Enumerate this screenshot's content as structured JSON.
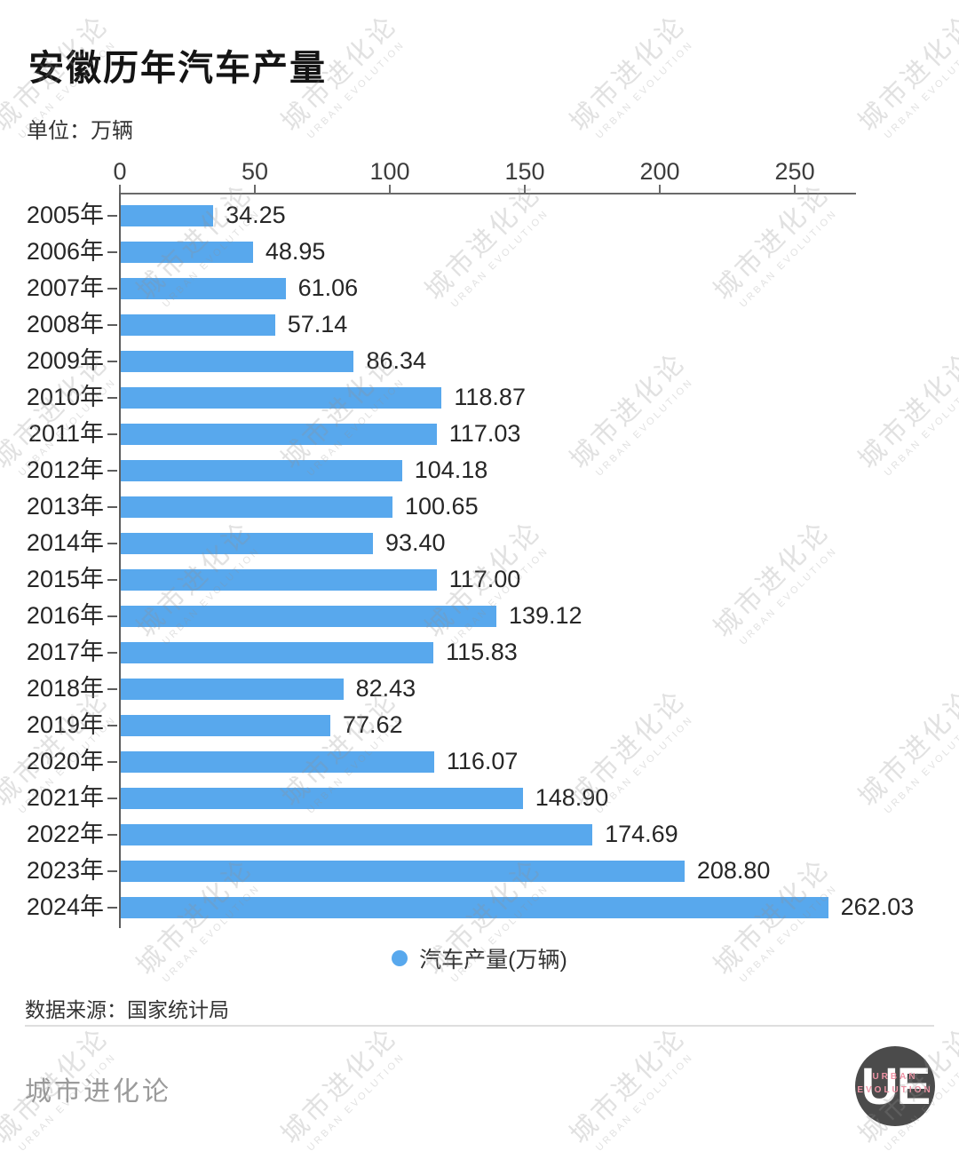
{
  "header": {
    "title": "安徽历年汽车产量",
    "unit_label": "单位：万辆"
  },
  "chart_data": {
    "type": "bar",
    "orientation": "horizontal",
    "title": "安徽历年汽车产量",
    "unit": "万辆",
    "categories": [
      "2005年",
      "2006年",
      "2007年",
      "2008年",
      "2009年",
      "2010年",
      "2011年",
      "2012年",
      "2013年",
      "2014年",
      "2015年",
      "2016年",
      "2017年",
      "2018年",
      "2019年",
      "2020年",
      "2021年",
      "2022年",
      "2023年",
      "2024年"
    ],
    "values": [
      34.25,
      48.95,
      61.06,
      57.14,
      86.34,
      118.87,
      117.03,
      104.18,
      100.65,
      93.4,
      117.0,
      139.12,
      115.83,
      82.43,
      77.62,
      116.07,
      148.9,
      174.69,
      208.8,
      262.03
    ],
    "value_label_decimals": 2,
    "x_ticks": [
      0,
      50,
      100,
      150,
      200,
      250
    ],
    "xlim": [
      0,
      273
    ],
    "grid": false,
    "legend": "汽车产量(万辆)",
    "legend_position": "bottom-center",
    "bar_color": "#58A8ED",
    "xlabel": "",
    "ylabel": ""
  },
  "watermark": {
    "text": "城市进化论",
    "subtext": "URBAN EVOLUTION"
  },
  "footer": {
    "source": "数据来源：国家统计局",
    "brand": "城市进化论",
    "logo": {
      "initials": "UE",
      "line1": "URBAN",
      "line2": "EVOLUTION"
    }
  },
  "colors": {
    "bar": "#58A8ED",
    "axis": "#6a6a6a",
    "title_text": "#141414",
    "label_text": "#262626",
    "brand_gray": "#9b9b9b",
    "logo_background": "#4b4b4b",
    "logo_accent": "#ef93a5",
    "divider": "#dedede"
  }
}
